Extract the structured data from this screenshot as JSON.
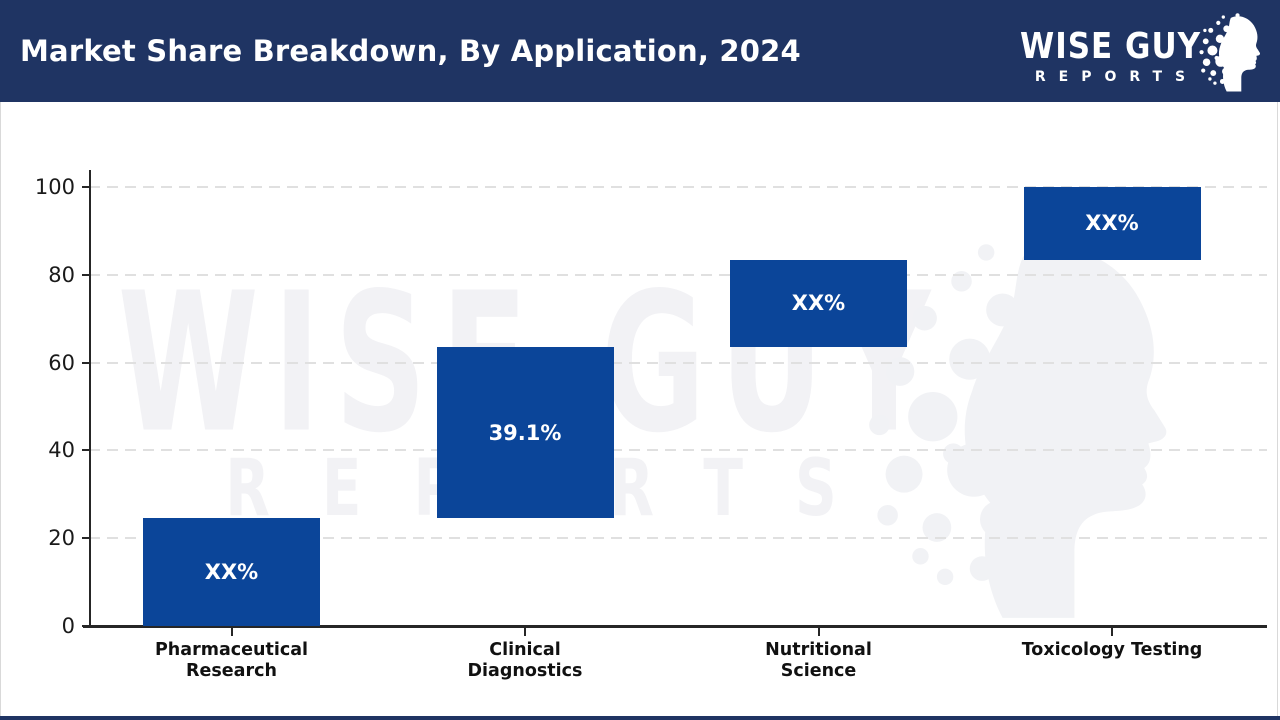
{
  "header": {
    "title": "Market Share Breakdown, By Application, 2024",
    "logo": {
      "line1": "WISE GUY",
      "line2": "REPORTS"
    }
  },
  "watermark": {
    "line1": "WISE GUY",
    "line2": "REPORTS"
  },
  "chart_data": {
    "type": "bar",
    "subtype": "floating-waterfall",
    "title": "Market Share Breakdown, By Application, 2024",
    "categories": [
      "Pharmaceutical Research",
      "Clinical Diagnostics",
      "Nutritional Science",
      "Toxicology Testing"
    ],
    "category_label_lines": [
      [
        "Pharmaceutical",
        "Research"
      ],
      [
        "Clinical",
        "Diagnostics"
      ],
      [
        "Nutritional",
        "Science"
      ],
      [
        "Toxicology Testing"
      ]
    ],
    "segments": [
      {
        "category": "Pharmaceutical Research",
        "start": 0,
        "end": 24.5,
        "value": 24.5,
        "label": "XX%"
      },
      {
        "category": "Clinical Diagnostics",
        "start": 24.5,
        "end": 63.6,
        "value": 39.1,
        "label": "39.1%"
      },
      {
        "category": "Nutritional Science",
        "start": 63.6,
        "end": 83.4,
        "value": 19.8,
        "label": "XX%"
      },
      {
        "category": "Toxicology Testing",
        "start": 83.4,
        "end": 100,
        "value": 16.6,
        "label": "XX%"
      }
    ],
    "xlabel": "",
    "ylabel": "",
    "ylim": [
      0,
      100
    ],
    "yticks": [
      0,
      20,
      40,
      60,
      80,
      100
    ],
    "grid": "horizontal-dashed",
    "legend": "none",
    "colors": {
      "bar": "#0b4599",
      "bar_label": "#ffffff",
      "header_navy": "#1f3463",
      "axis": "#262626",
      "gridline": "#e0e0e0",
      "tick_text": "#1a1a1a",
      "watermark": "#f2f2f5"
    }
  }
}
